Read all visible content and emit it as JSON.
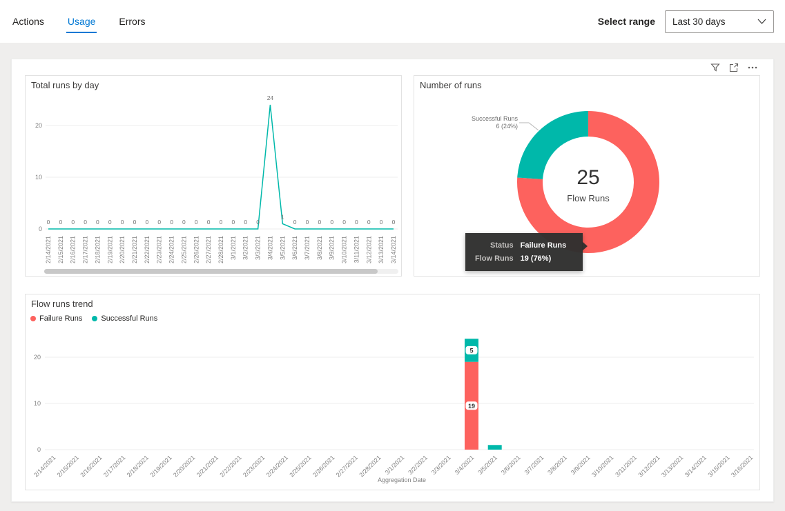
{
  "tabs": [
    {
      "label": "Actions"
    },
    {
      "label": "Usage"
    },
    {
      "label": "Errors"
    }
  ],
  "range_selector": {
    "label": "Select range",
    "value": "Last 30 days"
  },
  "colors": {
    "accent": "#0078d4",
    "failure": "#fd625e",
    "success": "#00b8aa"
  },
  "toolbar": {
    "icons": [
      "filter",
      "focus-mode",
      "more-options"
    ]
  },
  "chart_data": [
    {
      "type": "line",
      "title": "Total runs by day",
      "color": "#00b8aa",
      "yticks": [
        0,
        10,
        20
      ],
      "ylim": [
        0,
        25
      ],
      "x": [
        "2/14/2021",
        "2/15/2021",
        "2/16/2021",
        "2/17/2021",
        "2/18/2021",
        "2/19/2021",
        "2/20/2021",
        "2/21/2021",
        "2/22/2021",
        "2/23/2021",
        "2/24/2021",
        "2/25/2021",
        "2/26/2021",
        "2/27/2021",
        "2/28/2021",
        "3/1/2021",
        "3/2/2021",
        "3/3/2021",
        "3/4/2021",
        "3/5/2021",
        "3/6/2021",
        "3/7/2021",
        "3/8/2021",
        "3/9/2021",
        "3/10/2021",
        "3/11/2021",
        "3/12/2021",
        "3/13/2021",
        "3/14/2021"
      ],
      "values": [
        0,
        0,
        0,
        0,
        0,
        0,
        0,
        0,
        0,
        0,
        0,
        0,
        0,
        0,
        0,
        0,
        0,
        0,
        24,
        1,
        0,
        0,
        0,
        0,
        0,
        0,
        0,
        0,
        0
      ]
    },
    {
      "type": "pie",
      "title": "Number of runs",
      "center": {
        "value": "25",
        "label": "Flow Runs"
      },
      "slices": [
        {
          "name": "Failure Runs",
          "value": 19,
          "percent": "76%",
          "color": "#fd625e"
        },
        {
          "name": "Successful Runs",
          "value": 6,
          "percent": "24%",
          "color": "#00b8aa"
        }
      ],
      "callout": {
        "line1": "Successful Runs",
        "line2": "6 (24%)"
      },
      "tooltip": {
        "rows": [
          {
            "label": "Status",
            "value": "Failure Runs"
          },
          {
            "label": "Flow Runs",
            "value": "19 (76%)"
          }
        ]
      }
    },
    {
      "type": "bar",
      "stacked": true,
      "title": "Flow runs trend",
      "xlabel": "Aggregation Date",
      "yticks": [
        0,
        10,
        20
      ],
      "categories": [
        "2/14/2021",
        "2/15/2021",
        "2/16/2021",
        "2/17/2021",
        "2/18/2021",
        "2/19/2021",
        "2/20/2021",
        "2/21/2021",
        "2/22/2021",
        "2/23/2021",
        "2/24/2021",
        "2/25/2021",
        "2/26/2021",
        "2/27/2021",
        "2/28/2021",
        "3/1/2021",
        "3/2/2021",
        "3/3/2021",
        "3/4/2021",
        "3/5/2021",
        "3/6/2021",
        "3/7/2021",
        "3/8/2021",
        "3/9/2021",
        "3/10/2021",
        "3/11/2021",
        "3/12/2021",
        "3/13/2021",
        "3/14/2021",
        "3/15/2021",
        "3/16/2021"
      ],
      "series": [
        {
          "name": "Failure Runs",
          "color": "#fd625e",
          "values": [
            0,
            0,
            0,
            0,
            0,
            0,
            0,
            0,
            0,
            0,
            0,
            0,
            0,
            0,
            0,
            0,
            0,
            0,
            19,
            0,
            0,
            0,
            0,
            0,
            0,
            0,
            0,
            0,
            0,
            0,
            0
          ]
        },
        {
          "name": "Successful Runs",
          "color": "#00b8aa",
          "values": [
            0,
            0,
            0,
            0,
            0,
            0,
            0,
            0,
            0,
            0,
            0,
            0,
            0,
            0,
            0,
            0,
            0,
            0,
            5,
            1,
            0,
            0,
            0,
            0,
            0,
            0,
            0,
            0,
            0,
            0,
            0
          ]
        }
      ]
    }
  ]
}
